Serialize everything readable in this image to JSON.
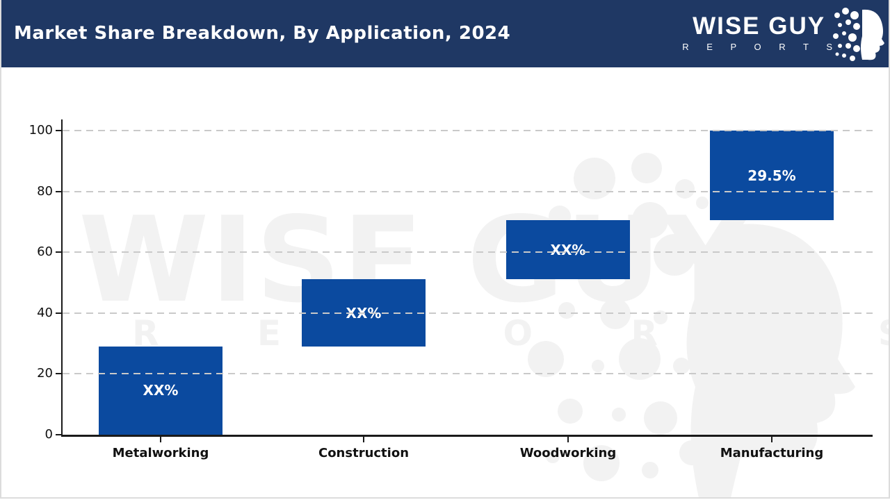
{
  "header": {
    "title": "Market Share Breakdown, By Application, 2024",
    "logo": {
      "line1": "WISE GUY",
      "line2": "R E P O R T S"
    }
  },
  "watermark": {
    "line1": "WISE GUY",
    "line2": "R E P O R T S"
  },
  "chart_data": {
    "type": "bar",
    "subtype": "floating-waterfall-bars",
    "title": "Market Share Breakdown, By Application, 2024",
    "categories": [
      "Metalworking",
      "Construction",
      "Woodworking",
      "Manufacturing"
    ],
    "segments": [
      {
        "category": "Metalworking",
        "start": 0,
        "end": 29,
        "label": "XX%"
      },
      {
        "category": "Construction",
        "start": 29,
        "end": 51,
        "label": "XX%"
      },
      {
        "category": "Woodworking",
        "start": 51,
        "end": 70.5,
        "label": "XX%"
      },
      {
        "category": "Manufacturing",
        "start": 70.5,
        "end": 100,
        "label": "29.5%"
      }
    ],
    "xlabel": "",
    "ylabel": "",
    "ylim": [
      0,
      100
    ],
    "yticks": [
      0,
      20,
      40,
      60,
      80,
      100
    ],
    "grid": "horizontal-dashed",
    "legend": "none",
    "colors": {
      "bar": "#0b4a9f",
      "bar_label": "#ffffff",
      "axis": "#1a1a1a",
      "gridline": "#c9c9c9",
      "header_bg": "#1f3864",
      "watermark": "#f2f2f2"
    }
  }
}
